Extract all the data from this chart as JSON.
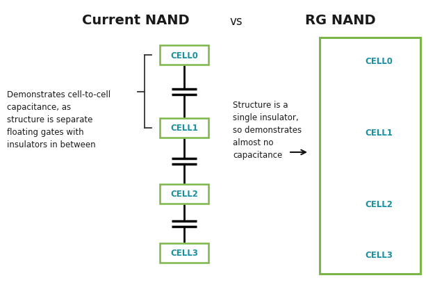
{
  "title_left": "Current NAND",
  "title_vs": "vs",
  "title_right": "RG NAND",
  "title_fontsize": 14,
  "cell_color": "#1a8fa0",
  "cell_box_color": "#7ab648",
  "left_cells": [
    "CELL0",
    "CELL1",
    "CELL2",
    "CELL3"
  ],
  "right_cells": [
    "CELL0",
    "CELL1",
    "CELL2",
    "CELL3"
  ],
  "left_text": "Demonstrates cell-to-cell\ncapacitance, as\nstructure is separate\nfloating gates with\ninsulators in between",
  "right_text": "Structure is a\nsingle insulator,\nso demonstrates\nalmost no\ncapacitance",
  "bg_color": "#ffffff",
  "annot_fontsize": 8.5,
  "cell_fontsize": 8.5,
  "right_outer_box_color": "#7ab648",
  "brace_color": "#333333",
  "cap_color": "#111111",
  "arrow_color": "#111111"
}
